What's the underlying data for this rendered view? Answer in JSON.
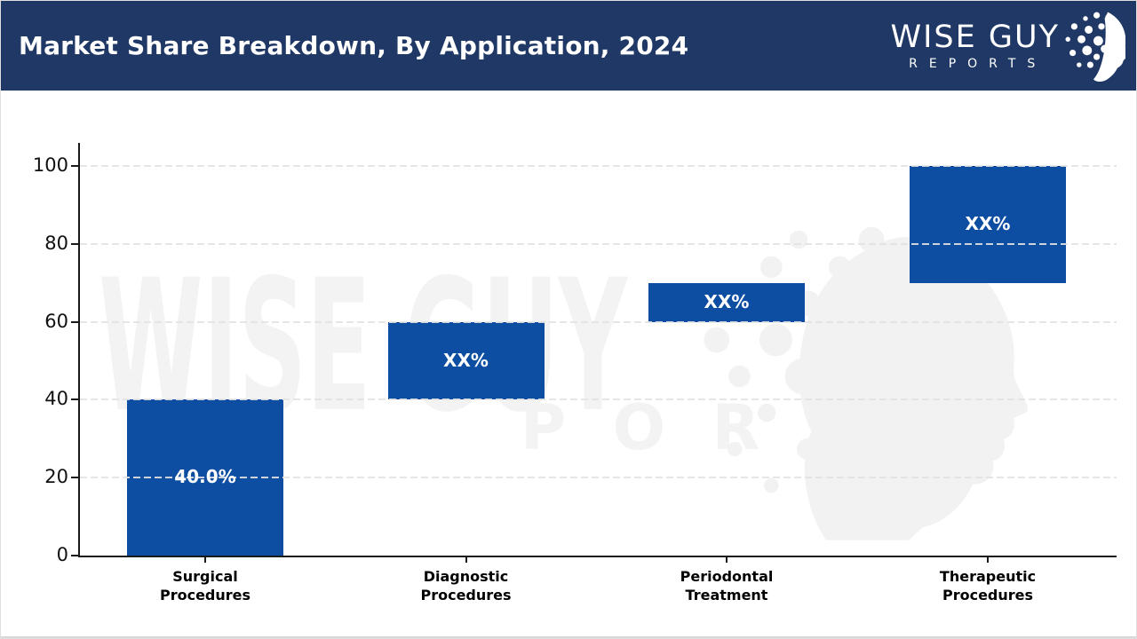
{
  "header": {
    "title": "Market Share Breakdown, By Application, 2024",
    "logo": {
      "line1": "WISE GUY",
      "line2": "REPORTS"
    }
  },
  "watermark": {
    "line1": "WISE GUY",
    "line2": "P O R T S"
  },
  "chart_data": {
    "type": "bar",
    "subtype": "waterfall",
    "title": "Market Share Breakdown, By Application, 2024",
    "categories": [
      "Surgical Procedures",
      "Diagnostic Procedures",
      "Periodontal Treatment",
      "Therapeutic Procedures"
    ],
    "category_lines": [
      [
        "Surgical",
        "Procedures"
      ],
      [
        "Diagnostic",
        "Procedures"
      ],
      [
        "Periodontal",
        "Treatment"
      ],
      [
        "Therapeutic",
        "Procedures"
      ]
    ],
    "segments": [
      {
        "category": "Surgical Procedures",
        "start": 0,
        "end": 40,
        "value": 40,
        "label": "40.0%"
      },
      {
        "category": "Diagnostic Procedures",
        "start": 40,
        "end": 60,
        "value": 20,
        "label": "XX%"
      },
      {
        "category": "Periodontal Treatment",
        "start": 60,
        "end": 70,
        "value": 10,
        "label": "XX%"
      },
      {
        "category": "Therapeutic Procedures",
        "start": 70,
        "end": 100,
        "value": 30,
        "label": "XX%"
      }
    ],
    "xlabel": "",
    "ylabel": "",
    "yticks": [
      0,
      20,
      40,
      60,
      80,
      100
    ],
    "ylim": [
      0,
      105
    ],
    "grid": "horizontal-dashed",
    "legend": "none",
    "colors": {
      "bar": "#0d4da2",
      "grid": "#e3e3e3",
      "axis": "#1a1a1a",
      "value_label": "#ffffff",
      "header_bg": "#1f3865"
    }
  }
}
